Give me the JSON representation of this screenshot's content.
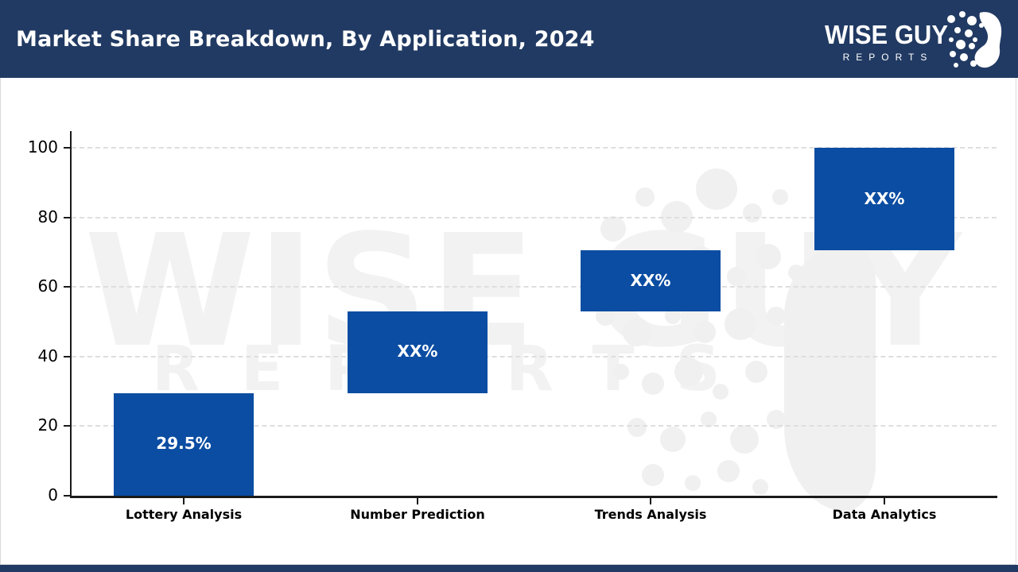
{
  "header": {
    "title": "Market Share Breakdown, By Application, 2024"
  },
  "logo": {
    "line1": "WISE GUY",
    "line2": "REPORTS"
  },
  "watermark": {
    "line1": "WISE GUY",
    "line2": "REPORTS"
  },
  "colors": {
    "header_bg": "#213a63",
    "footer_bg": "#213a63",
    "bar": "#0b4da2",
    "bar_label": "#ffffff",
    "grid": "#dedede",
    "axis": "#1a1a1a",
    "watermark": "#f2f2f2"
  },
  "chart_data": {
    "type": "bar",
    "subtype": "waterfall",
    "title": "Market Share Breakdown, By Application, 2024",
    "categories": [
      "Lottery Analysis",
      "Number Prediction",
      "Trends Analysis",
      "Data Analytics"
    ],
    "segments": [
      {
        "category": "Lottery Analysis",
        "start": 0,
        "end": 29.5,
        "value": 29.5,
        "label": "29.5%"
      },
      {
        "category": "Number Prediction",
        "start": 29.5,
        "end": 53,
        "value": 23.5,
        "label": "XX%"
      },
      {
        "category": "Trends Analysis",
        "start": 53,
        "end": 70.5,
        "value": 17.5,
        "label": "XX%"
      },
      {
        "category": "Data Analytics",
        "start": 70.5,
        "end": 100,
        "value": 29.5,
        "label": "XX%"
      }
    ],
    "yticks": [
      0,
      20,
      40,
      60,
      80,
      100
    ],
    "ylim": [
      0,
      100
    ],
    "xlabel": "",
    "ylabel": "",
    "grid": "horizontal-dashed",
    "legend": "none"
  }
}
